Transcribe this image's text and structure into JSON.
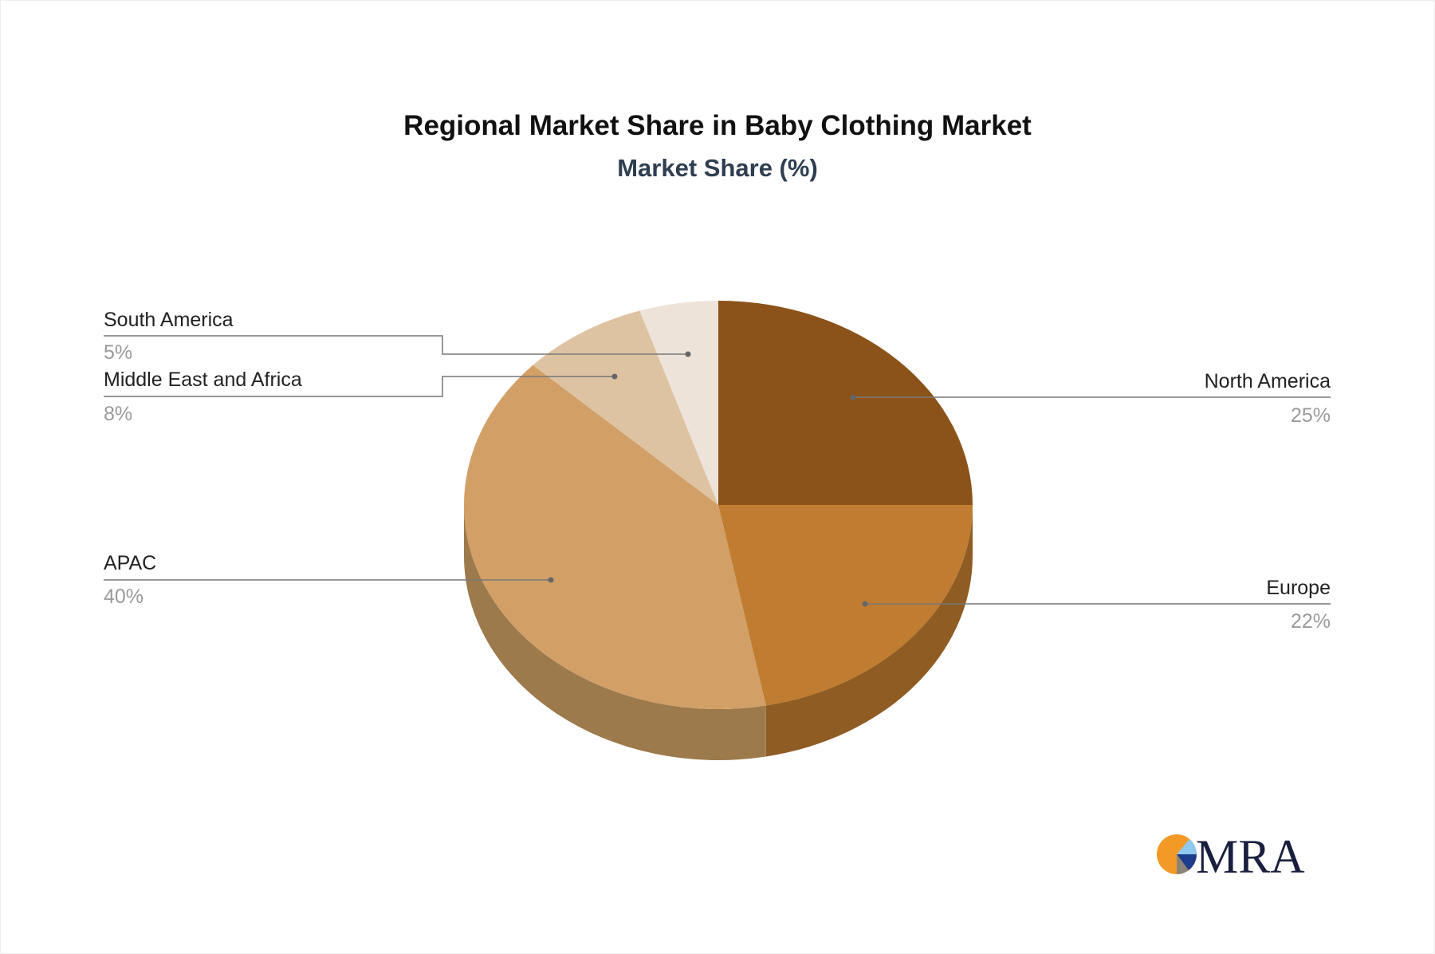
{
  "chart_data": {
    "type": "pie",
    "style": "3d",
    "title": "Regional Market Share in Baby Clothing Market",
    "subtitle": "Market Share (%)",
    "slices": [
      {
        "label": "North America",
        "value": 25,
        "value_label": "25%",
        "color": "#8B5319",
        "side_color": "#6E4214"
      },
      {
        "label": "Europe",
        "value": 22,
        "value_label": "22%",
        "color": "#C07C30",
        "side_color": "#8F5C24"
      },
      {
        "label": "APAC",
        "value": 40,
        "value_label": "40%",
        "color": "#D2A067",
        "side_color": "#9C7A4C"
      },
      {
        "label": "Middle East and Africa",
        "value": 8,
        "value_label": "8%",
        "color": "#DEC3A3",
        "side_color": "#A89278"
      },
      {
        "label": "South America",
        "value": 5,
        "value_label": "5%",
        "color": "#EEE3D9",
        "side_color": "#B3AAA2"
      }
    ]
  },
  "logo": {
    "text": "MRA",
    "colors": [
      "#F39A26",
      "#8FC9EE",
      "#1D3D8C",
      "#8C8377",
      "#1A1F3D"
    ]
  }
}
